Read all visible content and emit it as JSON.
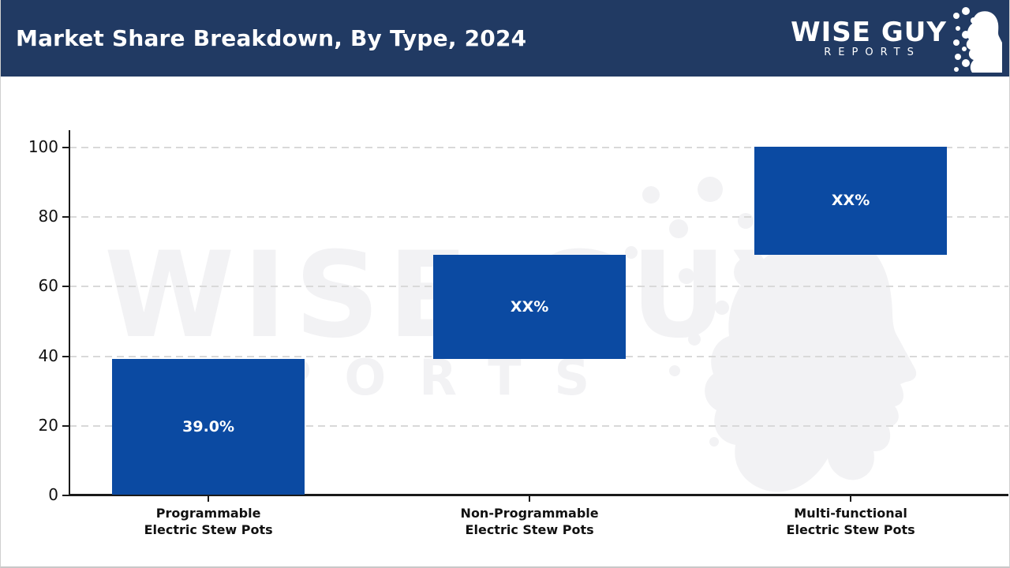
{
  "header": {
    "title": "Market Share Breakdown, By Type, 2024",
    "logo": {
      "line1": "WISE GUY",
      "line2": "REPORTS"
    }
  },
  "watermark": {
    "line1": "WISE GUY",
    "line2": "REPORTS"
  },
  "chart_data": {
    "type": "bar",
    "subtype": "stacked-waterfall",
    "title": "Market Share Breakdown, By Type, 2024",
    "categories": [
      [
        "Programmable",
        "Electric Stew Pots"
      ],
      [
        "Non-Programmable",
        "Electric Stew Pots"
      ],
      [
        "Multi-functional",
        "Electric Stew Pots"
      ]
    ],
    "bars": [
      {
        "from": 0,
        "to": 39,
        "label": "39.0%"
      },
      {
        "from": 39,
        "to": 69,
        "label": "XX%"
      },
      {
        "from": 69,
        "to": 100,
        "label": "XX%"
      }
    ],
    "ylim": [
      0,
      100
    ],
    "yticks": [
      0,
      20,
      40,
      60,
      80,
      100
    ],
    "grid": "dashed-horizontal",
    "legend": "none",
    "bar_color": "#0b4aa2",
    "bar_label_color": "#ffffff"
  },
  "colors": {
    "header_bg": "#213a63",
    "axis": "#1a1a1a",
    "grid": "#d9d9d9",
    "watermark": "#f2f2f4"
  }
}
